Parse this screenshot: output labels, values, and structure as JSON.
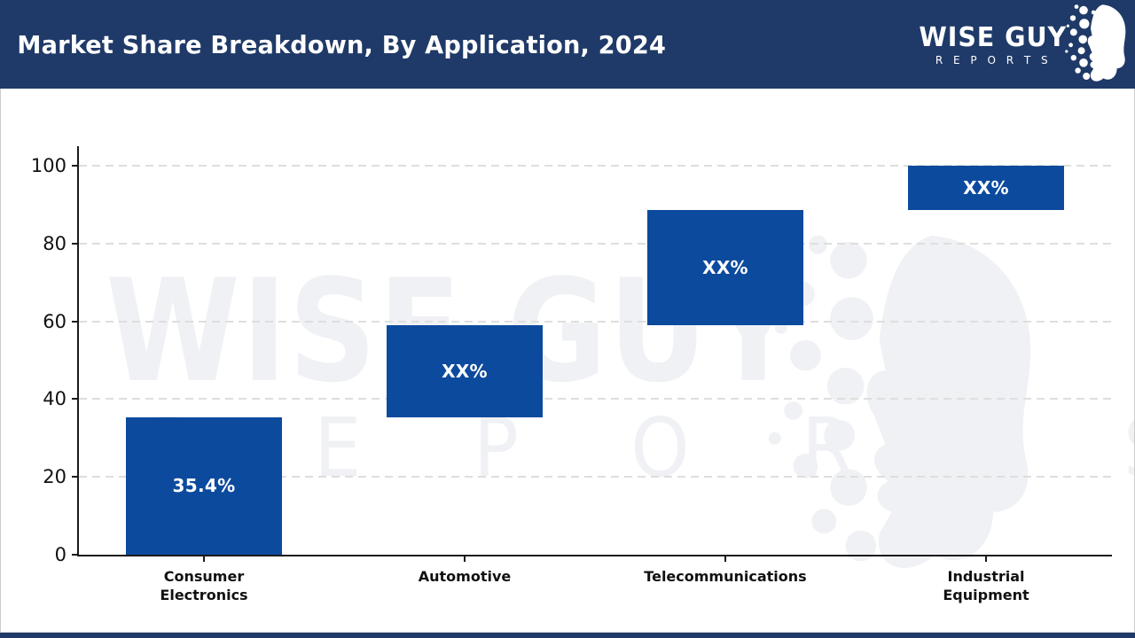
{
  "header": {
    "title": "Market Share Breakdown, By Application, 2024"
  },
  "logo": {
    "wordmark": "WISE GUY",
    "subtext": "R E P O R T S"
  },
  "watermark": {
    "wordmark": "WISE GUY",
    "subtext": "R E P O R T S"
  },
  "colors": {
    "header_bg": "#1f3a68",
    "bar": "#0c4a9e",
    "bar_label": "#ffffff",
    "grid": "#dedede",
    "axis": "#1a1a1a",
    "watermark": "#f0f1f4",
    "chart_border": "#cccccc"
  },
  "chart_data": {
    "type": "bar",
    "variant": "waterfall",
    "title": "Market Share Breakdown, By Application, 2024",
    "categories": [
      "Consumer Electronics",
      "Automotive",
      "Telecommunications",
      "Industrial Equipment"
    ],
    "category_label_lines": [
      [
        "Consumer",
        "Electronics"
      ],
      [
        "Automotive"
      ],
      [
        "Telecommunications"
      ],
      [
        "Industrial",
        "Equipment"
      ]
    ],
    "bars": [
      {
        "category": "Consumer Electronics",
        "start": 0,
        "end": 35.4,
        "label": "35.4%"
      },
      {
        "category": "Automotive",
        "start": 35.4,
        "end": 59.0,
        "label": "XX%"
      },
      {
        "category": "Telecommunications",
        "start": 59.0,
        "end": 88.6,
        "label": "XX%"
      },
      {
        "category": "Industrial Equipment",
        "start": 88.6,
        "end": 100.0,
        "label": "XX%"
      }
    ],
    "yticks": [
      0,
      20,
      40,
      60,
      80,
      100
    ],
    "ylim": [
      0,
      105
    ],
    "xlabel": "",
    "ylabel": "",
    "grid": "horizontal-dashed",
    "legend_position": "none",
    "bar_value_labels_inside": true
  }
}
